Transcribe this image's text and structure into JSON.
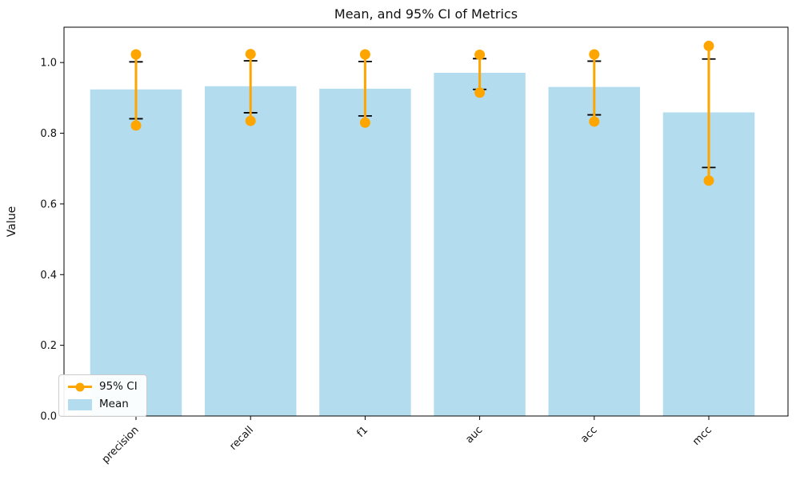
{
  "chart_data": {
    "type": "bar",
    "title": "Mean, and 95% CI of Metrics",
    "xlabel": "",
    "ylabel": "Value",
    "categories": [
      "precision",
      "recall",
      "f1",
      "auc",
      "acc",
      "mcc"
    ],
    "series": [
      {
        "name": "Mean",
        "render": "bar",
        "color": "#b3ddee",
        "values": [
          0.924,
          0.933,
          0.926,
          0.971,
          0.931,
          0.859
        ]
      },
      {
        "name": "95% CI",
        "render": "vertical-line-with-dot-ends",
        "color": "#ffa500",
        "low": [
          0.822,
          0.835,
          0.83,
          0.915,
          0.833,
          0.666
        ],
        "high": [
          1.023,
          1.024,
          1.023,
          1.022,
          1.023,
          1.047
        ]
      },
      {
        "name": "error-bar-caps",
        "render": "errorbar",
        "color": "#000000",
        "low": [
          0.841,
          0.858,
          0.849,
          0.924,
          0.852,
          0.703
        ],
        "high": [
          1.002,
          1.005,
          1.003,
          1.011,
          1.004,
          1.01
        ]
      }
    ],
    "yticks": [
      0.0,
      0.2,
      0.4,
      0.6,
      0.8,
      1.0
    ],
    "ylim": [
      0,
      1.1
    ],
    "grid": false,
    "legend_position": "lower left",
    "legend": [
      {
        "label": "95% CI",
        "swatch": "line-marker",
        "color": "#ffa500"
      },
      {
        "label": "Mean",
        "swatch": "patch",
        "color": "#b3ddee"
      }
    ],
    "colors": {
      "bar_fill": "#b3ddee",
      "ci_line": "#ffa500",
      "errorbar": "#000000",
      "axis": "#000000",
      "text": "#111111",
      "background": "#ffffff"
    }
  }
}
